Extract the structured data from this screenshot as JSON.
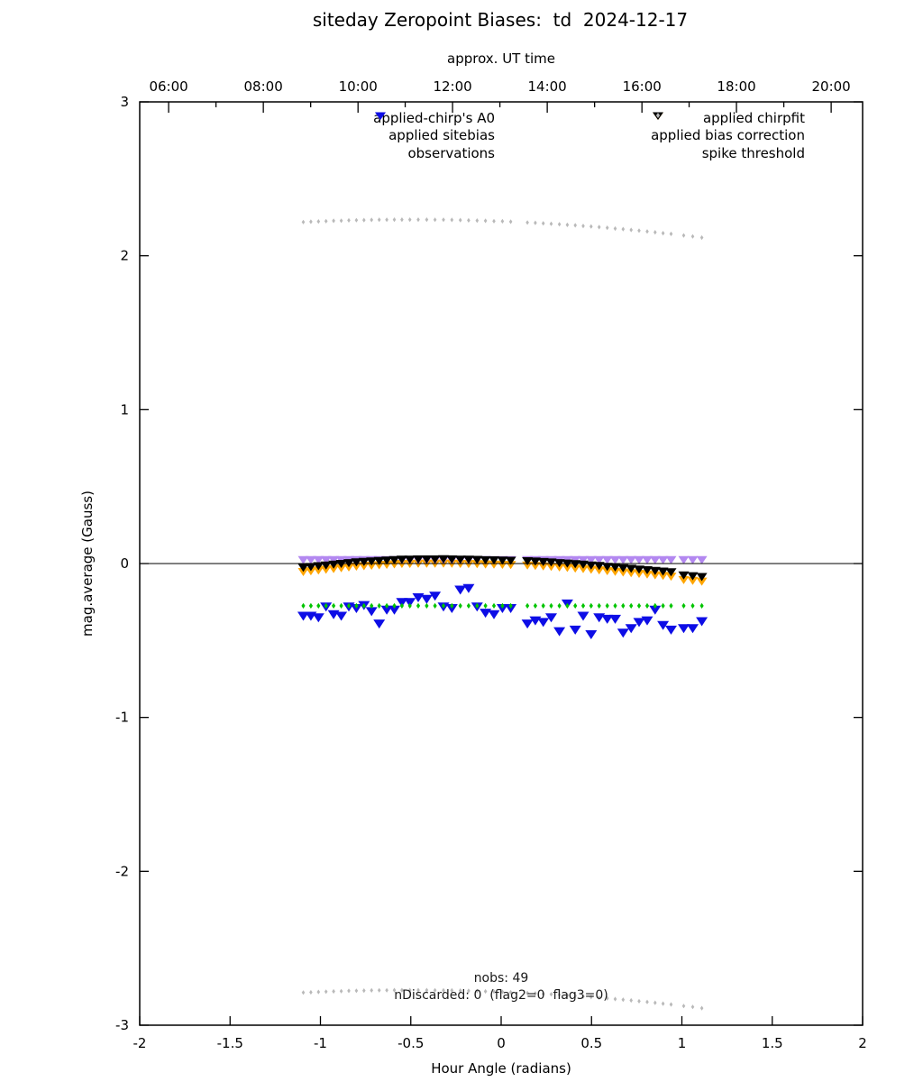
{
  "chart_data": {
    "type": "scatter",
    "title": "siteday Zeropoint Biases:  td  2024-12-17",
    "top_axis": {
      "label": "approx. UT time",
      "major_ticks": [
        {
          "label": "06:00",
          "x": -1.84
        },
        {
          "label": "08:00",
          "x": -1.316
        },
        {
          "label": "10:00",
          "x": -0.792
        },
        {
          "label": "12:00",
          "x": -0.269
        },
        {
          "label": "14:00",
          "x": 0.255
        },
        {
          "label": "16:00",
          "x": 0.779
        },
        {
          "label": "18:00",
          "x": 1.302
        },
        {
          "label": "20:00",
          "x": 1.826
        }
      ],
      "minor_ticks": [
        -1.578,
        -1.054,
        -0.531,
        -0.007,
        0.517,
        1.04,
        1.564
      ]
    },
    "x_axis": {
      "label": "Hour Angle (radians)",
      "range": [
        -2,
        2
      ],
      "ticks": [
        {
          "label": "-2",
          "x": -2
        },
        {
          "label": "-1.5",
          "x": -1.5
        },
        {
          "label": "-1",
          "x": -1
        },
        {
          "label": "-0.5",
          "x": -0.5
        },
        {
          "label": "0",
          "x": 0
        },
        {
          "label": "0.5",
          "x": 0.5
        },
        {
          "label": "1",
          "x": 1
        },
        {
          "label": "1.5",
          "x": 1.5
        },
        {
          "label": "2",
          "x": 2
        }
      ]
    },
    "y_axis": {
      "label": "mag.average (Gauss)",
      "range": [
        -3,
        3
      ],
      "ticks": [
        {
          "label": "3",
          "y": 3
        },
        {
          "label": "2",
          "y": 2
        },
        {
          "label": "1",
          "y": 1
        },
        {
          "label": "0",
          "y": 0
        },
        {
          "label": "-1",
          "y": -1
        },
        {
          "label": "-2",
          "y": -2
        },
        {
          "label": "-3",
          "y": -3
        }
      ],
      "zero_line": true
    },
    "annotations": {
      "nobs": "nobs: 49",
      "ndiscarded": "nDiscarded: 0  (flag2=0  flag3=0)"
    },
    "x": [
      -1.095,
      -1.053,
      -1.011,
      -0.969,
      -0.927,
      -0.885,
      -0.843,
      -0.801,
      -0.759,
      -0.717,
      -0.675,
      -0.633,
      -0.591,
      -0.549,
      -0.505,
      -0.459,
      -0.412,
      -0.366,
      -0.319,
      -0.273,
      -0.226,
      -0.18,
      -0.133,
      -0.087,
      -0.04,
      0.007,
      0.053,
      0.145,
      0.189,
      0.233,
      0.277,
      0.322,
      0.366,
      0.41,
      0.454,
      0.498,
      0.542,
      0.587,
      0.631,
      0.675,
      0.719,
      0.763,
      0.808,
      0.852,
      0.896,
      0.94,
      1.01,
      1.06,
      1.11
    ],
    "series": [
      {
        "key": "spike_upper",
        "name": "spike threshold",
        "marker": "dot",
        "color": "#b9b9b9",
        "y": [
          2.219,
          2.221,
          2.223,
          2.225,
          2.227,
          2.228,
          2.23,
          2.231,
          2.232,
          2.233,
          2.234,
          2.234,
          2.235,
          2.235,
          2.235,
          2.235,
          2.235,
          2.234,
          2.234,
          2.233,
          2.232,
          2.23,
          2.229,
          2.227,
          2.225,
          2.224,
          2.221,
          2.216,
          2.214,
          2.211,
          2.208,
          2.205,
          2.201,
          2.198,
          2.194,
          2.19,
          2.186,
          2.182,
          2.177,
          2.173,
          2.168,
          2.163,
          2.158,
          2.153,
          2.147,
          2.142,
          2.132,
          2.126,
          2.118
        ]
      },
      {
        "key": "spike_lower",
        "name": "spike threshold (lower)",
        "marker": "dot",
        "color": "#b9b9b9",
        "y": [
          -2.788,
          -2.786,
          -2.784,
          -2.782,
          -2.78,
          -2.779,
          -2.777,
          -2.776,
          -2.775,
          -2.774,
          -2.773,
          -2.773,
          -2.772,
          -2.772,
          -2.772,
          -2.772,
          -2.772,
          -2.773,
          -2.773,
          -2.774,
          -2.775,
          -2.777,
          -2.778,
          -2.78,
          -2.782,
          -2.783,
          -2.786,
          -2.791,
          -2.793,
          -2.796,
          -2.799,
          -2.802,
          -2.806,
          -2.809,
          -2.813,
          -2.817,
          -2.821,
          -2.825,
          -2.83,
          -2.834,
          -2.839,
          -2.844,
          -2.849,
          -2.854,
          -2.86,
          -2.865,
          -2.875,
          -2.881,
          -2.889
        ]
      },
      {
        "key": "chirpfit",
        "name": "applied chirpfit",
        "marker": "tri",
        "color": "#ffa500",
        "y": [
          -0.053,
          -0.048,
          -0.043,
          -0.038,
          -0.033,
          -0.028,
          -0.023,
          -0.018,
          -0.015,
          -0.012,
          -0.009,
          -0.006,
          -0.003,
          0.0,
          0.0,
          0.001,
          0.001,
          0.001,
          0.002,
          0.001,
          0.0,
          -0.001,
          -0.002,
          -0.004,
          -0.005,
          -0.006,
          -0.008,
          -0.011,
          -0.013,
          -0.016,
          -0.019,
          -0.023,
          -0.026,
          -0.03,
          -0.033,
          -0.038,
          -0.042,
          -0.047,
          -0.051,
          -0.056,
          -0.06,
          -0.065,
          -0.069,
          -0.074,
          -0.078,
          -0.083,
          -0.105,
          -0.11,
          -0.115
        ]
      },
      {
        "key": "sitebias",
        "name": "applied sitebias",
        "marker": "tri",
        "color": "#b388f0",
        "y_const": 0.025
      },
      {
        "key": "bias_correction",
        "name": "applied bias correction",
        "marker": "tri",
        "color": "#000000",
        "y": [
          -0.025,
          -0.02,
          -0.015,
          -0.01,
          -0.005,
          0.0,
          0.005,
          0.01,
          0.013,
          0.016,
          0.019,
          0.022,
          0.025,
          0.028,
          0.028,
          0.029,
          0.029,
          0.029,
          0.03,
          0.029,
          0.028,
          0.027,
          0.026,
          0.024,
          0.023,
          0.022,
          0.02,
          0.017,
          0.015,
          0.012,
          0.009,
          0.005,
          0.002,
          -0.002,
          -0.005,
          -0.01,
          -0.014,
          -0.019,
          -0.023,
          -0.028,
          -0.032,
          -0.037,
          -0.041,
          -0.046,
          -0.05,
          -0.055,
          -0.075,
          -0.08,
          -0.085
        ]
      },
      {
        "key": "observations",
        "name": "observations",
        "marker": "tri",
        "color": "#0d0de6",
        "big": true,
        "y": [
          -0.34,
          -0.34,
          -0.35,
          -0.28,
          -0.33,
          -0.34,
          -0.28,
          -0.29,
          -0.27,
          -0.31,
          -0.39,
          -0.3,
          -0.3,
          -0.25,
          -0.25,
          -0.22,
          -0.23,
          -0.21,
          -0.28,
          -0.29,
          -0.17,
          -0.16,
          -0.28,
          -0.32,
          -0.33,
          -0.29,
          -0.29,
          -0.39,
          -0.37,
          -0.38,
          -0.35,
          -0.44,
          -0.26,
          -0.43,
          -0.34,
          -0.46,
          -0.35,
          -0.36,
          -0.36,
          -0.45,
          -0.42,
          -0.38,
          -0.37,
          -0.3,
          -0.4,
          -0.43,
          -0.42,
          -0.42,
          -0.375
        ]
      },
      {
        "key": "a0",
        "name": "applied-chirp's A0",
        "marker": "dot",
        "color": "#00c400",
        "big": true,
        "y_const": -0.275
      }
    ],
    "legend": {
      "left": [
        {
          "label": "applied-chirp's A0",
          "series": "a0"
        },
        {
          "label": "applied sitebias",
          "series": "sitebias"
        },
        {
          "label": "observations",
          "series": "observations"
        }
      ],
      "right": [
        {
          "label": "applied chirpfit",
          "series": "chirpfit"
        },
        {
          "label": "applied bias correction",
          "series": "bias_correction"
        },
        {
          "label": "spike threshold",
          "series": "spike_upper"
        }
      ]
    },
    "frame_color": "#000000"
  }
}
